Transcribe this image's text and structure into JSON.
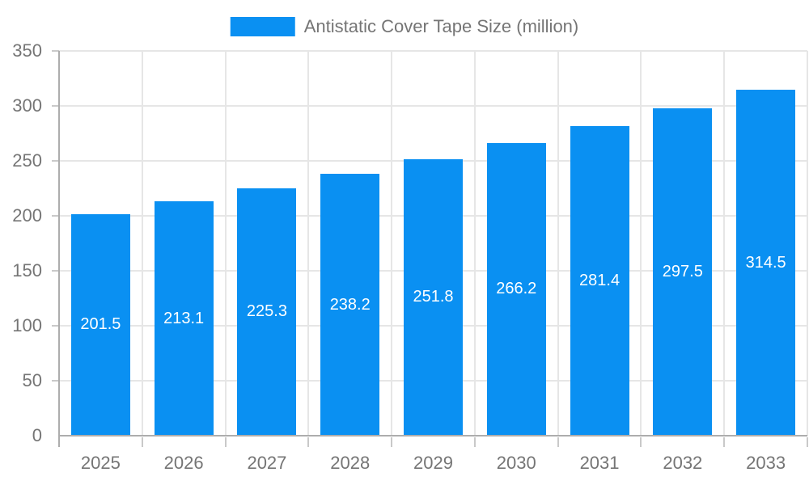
{
  "legend": {
    "label": "Antistatic Cover Tape Size (million)"
  },
  "chart_data": {
    "type": "bar",
    "title": "Antistatic Cover Tape Size (million)",
    "categories": [
      "2025",
      "2026",
      "2027",
      "2028",
      "2029",
      "2030",
      "2031",
      "2032",
      "2033"
    ],
    "values": [
      201.5,
      213.1,
      225.3,
      238.2,
      251.8,
      266.2,
      281.4,
      297.5,
      314.5
    ],
    "xlabel": "",
    "ylabel": "",
    "ylim": [
      0,
      350
    ],
    "ytick_step": 50,
    "ytick_labels": [
      "0",
      "50",
      "100",
      "150",
      "200",
      "250",
      "300",
      "350"
    ],
    "grid": true,
    "legend_position": "top-center",
    "value_label_position": "inside-center"
  },
  "colors": {
    "bar": "#0a90f2",
    "gridline": "#e6e6e6",
    "axis_line": "#adadad",
    "tick": "#c9c9c9",
    "axis_text": "#757575",
    "value_label_text": "#ffffff",
    "background": "#ffffff"
  }
}
